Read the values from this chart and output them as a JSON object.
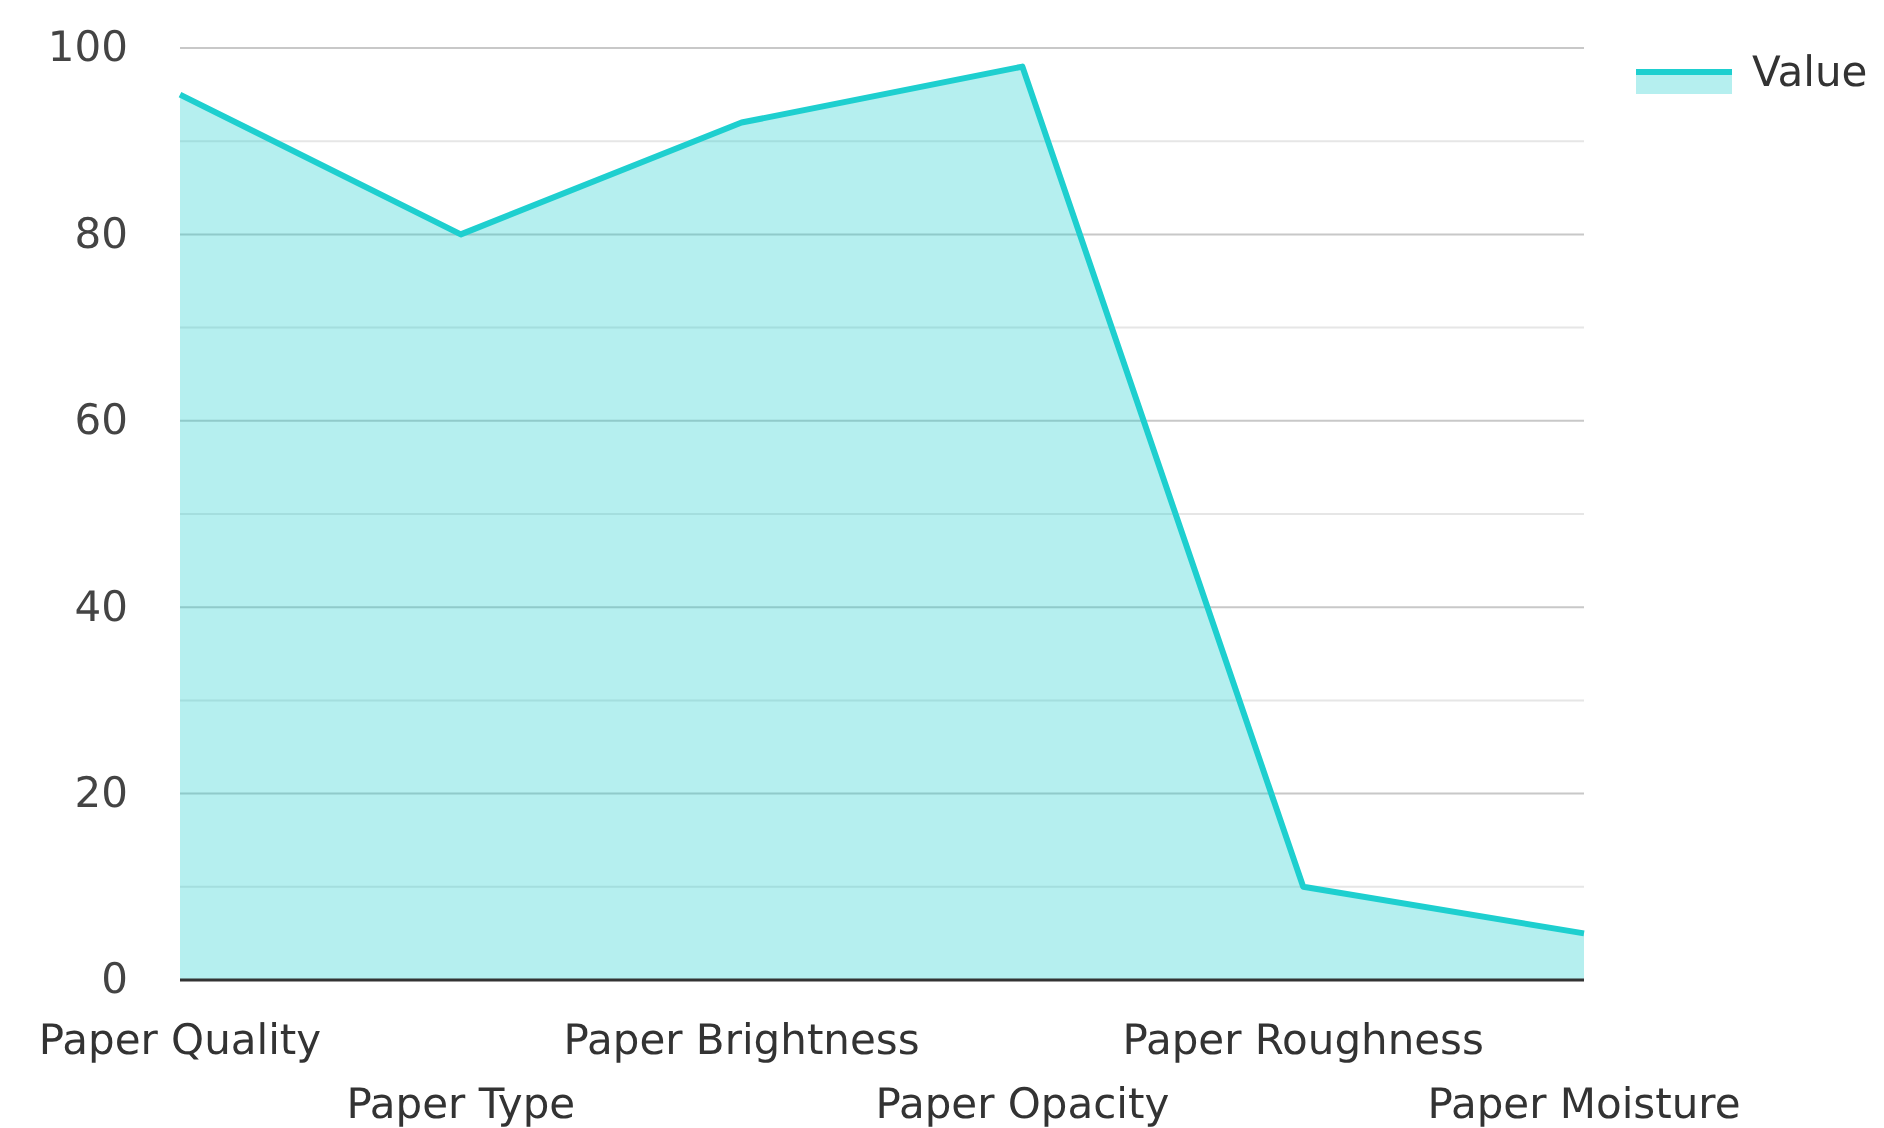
{
  "chart_data": {
    "type": "area",
    "categories": [
      "Paper Quality",
      "Paper Type",
      "Paper Brightness",
      "Paper Opacity",
      "Paper Roughness",
      "Paper Moisture"
    ],
    "series": [
      {
        "name": "Value",
        "color": "#1ecfcf",
        "values": [
          95,
          80,
          92,
          98,
          10,
          5
        ]
      }
    ],
    "ylim": [
      0,
      100
    ],
    "yticks": [
      0,
      {
        "value": 10,
        "label": null
      },
      20,
      {
        "value": 30,
        "label": null
      },
      40,
      {
        "value": 50,
        "label": null
      },
      60,
      {
        "value": 70,
        "label": null
      },
      80,
      {
        "value": 90,
        "label": null
      },
      100
    ],
    "grid": "y",
    "legend": "top right"
  }
}
